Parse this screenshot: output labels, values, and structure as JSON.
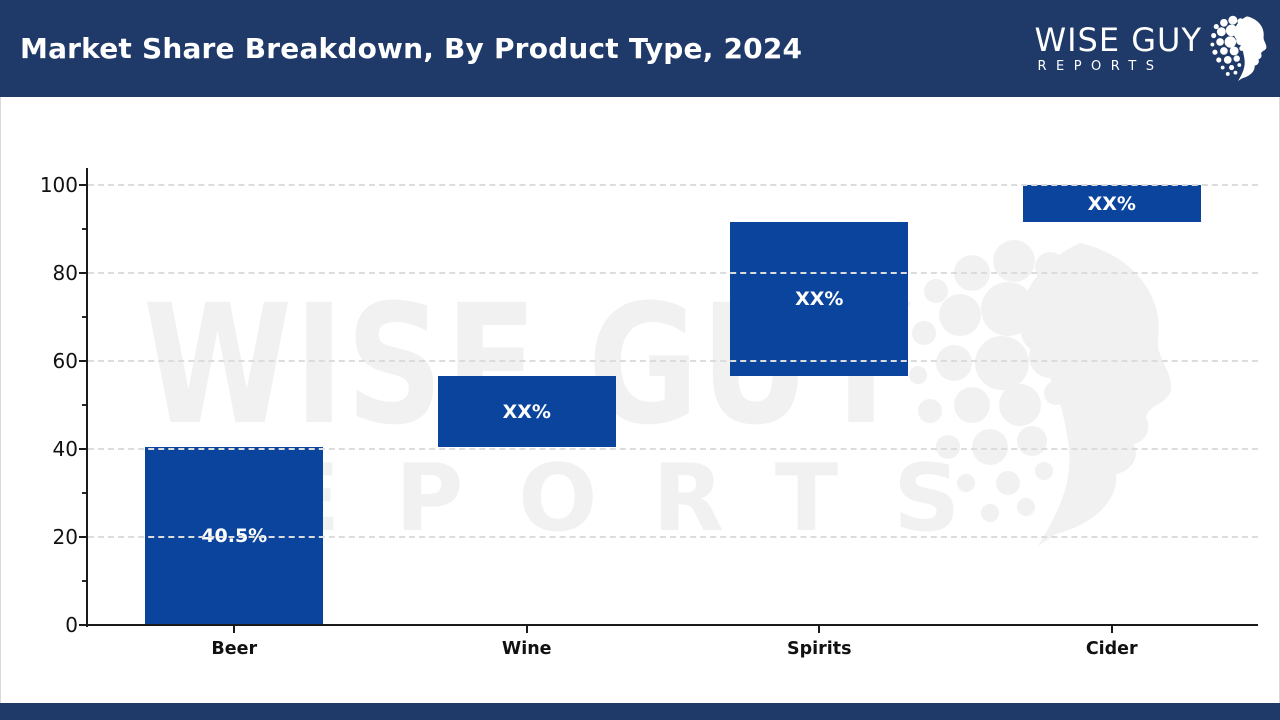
{
  "header": {
    "title": "Market Share Breakdown, By Product Type, 2024",
    "logo": {
      "line1": "WISE GUY",
      "line2": "REPORTS"
    }
  },
  "watermark": {
    "line1": "WISE GUY",
    "line2": "REPORTS"
  },
  "colors": {
    "header_bg": "#1f3a68",
    "footer_bg": "#1f3a68",
    "bar": "#0b449c",
    "grid": "#dcdcdc",
    "axis": "#1a1a1a",
    "watermark": "#f1f1f1"
  },
  "chart_data": {
    "type": "bar",
    "subtype": "waterfall",
    "title": "Market Share Breakdown, By Product Type, 2024",
    "xlabel": "",
    "ylabel": "",
    "ylim": [
      0,
      100
    ],
    "yticks": [
      0,
      20,
      40,
      60,
      80,
      100
    ],
    "minor_yticks": [
      10,
      30,
      50,
      70,
      90
    ],
    "grid": "dashed-horizontal",
    "legend": "none",
    "categories": [
      "Beer",
      "Wine",
      "Spirits",
      "Cider"
    ],
    "segments": [
      {
        "category": "Beer",
        "start": 0,
        "end": 40.5,
        "label": "40.5%"
      },
      {
        "category": "Wine",
        "start": 40.5,
        "end": 56.5,
        "label": "XX%"
      },
      {
        "category": "Spirits",
        "start": 56.5,
        "end": 91.5,
        "label": "XX%"
      },
      {
        "category": "Cider",
        "start": 91.5,
        "end": 100,
        "label": "XX%"
      }
    ]
  }
}
